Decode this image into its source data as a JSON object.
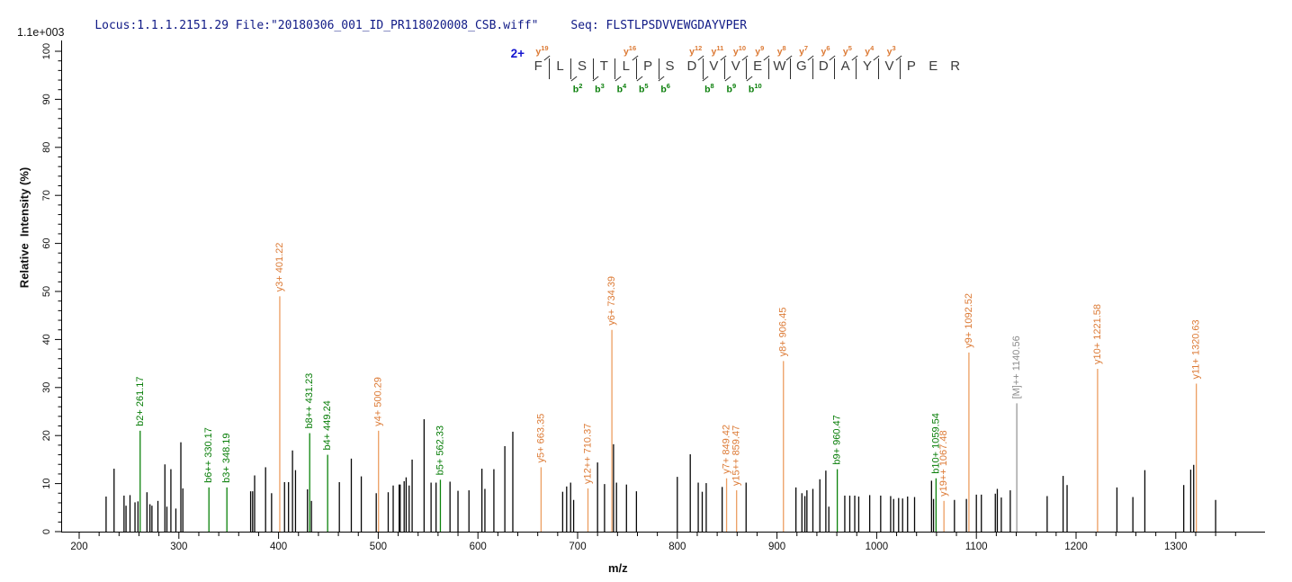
{
  "header": {
    "locus_file": "Locus:1.1.1.2151.29 File:\"20180306_001_ID_PR118020008_CSB.wiff\"",
    "seq": "Seq: FLSTLPSDVVEWGDAYVPER"
  },
  "y_axis": {
    "scale_note": "1.1e+003",
    "label": "Relative  Intensity (%)",
    "major_ticks": [
      0,
      10,
      20,
      30,
      40,
      50,
      60,
      70,
      80,
      90,
      100
    ],
    "minor_step": 2
  },
  "x_axis": {
    "label": "m/z",
    "major_ticks": [
      200,
      300,
      400,
      500,
      600,
      700,
      800,
      900,
      1000,
      1100,
      1200,
      1300
    ],
    "minor_step": 20
  },
  "sequence_panel": {
    "charge": "2+",
    "sequence": "FLSTLPSDVVEWGDAYVPER",
    "residues": [
      {
        "r": "F"
      },
      {
        "r": "L",
        "y": "19"
      },
      {
        "r": "S",
        "b": "2"
      },
      {
        "r": "T",
        "b": "3"
      },
      {
        "r": "L",
        "b": "4"
      },
      {
        "r": "P",
        "y": "16",
        "b": "5"
      },
      {
        "r": "S",
        "b": "6"
      },
      {
        "r": "D"
      },
      {
        "r": "V",
        "y": "12",
        "b": "8"
      },
      {
        "r": "V",
        "y": "11",
        "b": "9"
      },
      {
        "r": "E",
        "y": "10",
        "b": "10"
      },
      {
        "r": "W",
        "y": "9"
      },
      {
        "r": "G",
        "y": "8"
      },
      {
        "r": "D",
        "y": "7"
      },
      {
        "r": "A",
        "y": "6"
      },
      {
        "r": "Y",
        "y": "5"
      },
      {
        "r": "V",
        "y": "4"
      },
      {
        "r": "P",
        "y": "3"
      },
      {
        "r": "E"
      },
      {
        "r": "R"
      }
    ]
  },
  "colors": {
    "header_text": "#101A86",
    "charge_blue": "#1414D0",
    "b_line": "#0B830B",
    "b_text": "#077D07",
    "y_line": "#EC9E61",
    "y_text": "#DC7A35",
    "M_line": "#989898",
    "M_text": "#8C8C8C",
    "peak_black": "#060606",
    "axis": "#000000"
  },
  "chart_data": {
    "type": "bar",
    "subtype": "ms2-fragmentation-spectrum",
    "title": "",
    "xlabel": "m/z",
    "ylabel": "Relative Intensity (%)",
    "xlim": [
      182,
      1390
    ],
    "ylim": [
      0,
      100
    ],
    "grid": false,
    "legend": "none",
    "annotated_peaks": [
      {
        "label": "b2+ 261.17",
        "ion": "b2+",
        "mz": 261.17,
        "intensity": 21.0,
        "series": "b"
      },
      {
        "label": "b6++ 330.17",
        "ion": "b6++",
        "mz": 330.17,
        "intensity": 9.2,
        "series": "b"
      },
      {
        "label": "b3+ 348.19",
        "ion": "b3+",
        "mz": 348.19,
        "intensity": 9.2,
        "series": "b"
      },
      {
        "label": "y3+ 401.22",
        "ion": "y3+",
        "mz": 401.22,
        "intensity": 49.0,
        "series": "y"
      },
      {
        "label": "b8++ 431.23",
        "ion": "b8++",
        "mz": 431.23,
        "intensity": 20.5,
        "series": "b"
      },
      {
        "label": "b4+ 449.24",
        "ion": "b4+",
        "mz": 449.24,
        "intensity": 16.0,
        "series": "b"
      },
      {
        "label": "y4+ 500.29",
        "ion": "y4+",
        "mz": 500.29,
        "intensity": 21.0,
        "series": "y"
      },
      {
        "label": "b5+ 562.33",
        "ion": "b5+",
        "mz": 562.33,
        "intensity": 10.8,
        "series": "b"
      },
      {
        "label": "y5+ 663.35",
        "ion": "y5+",
        "mz": 663.35,
        "intensity": 13.4,
        "series": "y"
      },
      {
        "label": "y12++ 710.37",
        "ion": "y12++",
        "mz": 710.37,
        "intensity": 9.0,
        "series": "y"
      },
      {
        "label": "y6+ 734.39",
        "ion": "y6+",
        "mz": 734.39,
        "intensity": 42.0,
        "series": "y"
      },
      {
        "label": "y7+ 849.42",
        "ion": "y7+",
        "mz": 849.42,
        "intensity": 11.1,
        "series": "y"
      },
      {
        "label": "y15++ 859.47",
        "ion": "y15++",
        "mz": 859.47,
        "intensity": 8.6,
        "series": "y"
      },
      {
        "label": "y8+ 906.45",
        "ion": "y8+",
        "mz": 906.45,
        "intensity": 35.5,
        "series": "y"
      },
      {
        "label": "b9+ 960.47",
        "ion": "b9+",
        "mz": 960.47,
        "intensity": 13.0,
        "series": "b"
      },
      {
        "label": "b10+ 1059.54",
        "ion": "b10+",
        "mz": 1059.54,
        "intensity": 11.1,
        "series": "b"
      },
      {
        "label": "y19++ 1067.48",
        "ion": "y19++",
        "mz": 1067.48,
        "intensity": 6.4,
        "series": "y"
      },
      {
        "label": "y9+ 1092.52",
        "ion": "y9+",
        "mz": 1092.52,
        "intensity": 37.3,
        "series": "y"
      },
      {
        "label": "[M]++ 1140.56",
        "ion": "[M]++",
        "mz": 1140.56,
        "intensity": 26.7,
        "series": "M"
      },
      {
        "label": "y10+ 1221.58",
        "ion": "y10+",
        "mz": 1221.58,
        "intensity": 33.9,
        "series": "y"
      },
      {
        "label": "y11+ 1320.63",
        "ion": "y11+",
        "mz": 1320.63,
        "intensity": 30.8,
        "series": "y"
      }
    ],
    "peaks": [
      [
        227,
        7.3
      ],
      [
        235,
        13.1
      ],
      [
        245,
        7.5
      ],
      [
        247,
        5.4
      ],
      [
        251,
        7.6
      ],
      [
        256,
        6.1
      ],
      [
        259,
        6.3
      ],
      [
        268,
        8.2
      ],
      [
        271,
        5.7
      ],
      [
        273,
        5.4
      ],
      [
        279,
        6.4
      ],
      [
        286,
        14.0
      ],
      [
        288,
        5.2
      ],
      [
        292,
        13.0
      ],
      [
        297,
        4.8
      ],
      [
        302,
        18.6
      ],
      [
        304,
        9.0
      ],
      [
        372,
        8.4
      ],
      [
        374,
        8.4
      ],
      [
        376,
        11.7
      ],
      [
        387,
        13.4
      ],
      [
        393,
        8.0
      ],
      [
        406,
        10.3
      ],
      [
        410,
        10.3
      ],
      [
        414,
        16.9
      ],
      [
        417,
        12.8
      ],
      [
        429,
        8.8
      ],
      [
        433,
        6.4
      ],
      [
        461,
        10.3
      ],
      [
        473,
        15.2
      ],
      [
        483,
        11.5
      ],
      [
        498,
        8.0
      ],
      [
        510,
        8.2
      ],
      [
        515,
        9.6
      ],
      [
        521,
        9.8
      ],
      [
        522,
        9.8
      ],
      [
        526,
        10.5
      ],
      [
        528,
        11.3
      ],
      [
        531,
        9.6
      ],
      [
        534,
        15.0
      ],
      [
        546,
        23.4
      ],
      [
        553,
        10.2
      ],
      [
        558,
        10.2
      ],
      [
        572,
        10.4
      ],
      [
        580,
        8.5
      ],
      [
        591,
        8.6
      ],
      [
        604,
        13.1
      ],
      [
        607,
        8.9
      ],
      [
        616,
        13.0
      ],
      [
        627,
        17.8
      ],
      [
        635,
        20.8
      ],
      [
        685,
        8.3
      ],
      [
        689,
        9.4
      ],
      [
        693,
        10.2
      ],
      [
        696,
        6.6
      ],
      [
        720,
        14.4
      ],
      [
        727,
        9.9
      ],
      [
        736,
        18.2
      ],
      [
        739,
        10.2
      ],
      [
        749,
        9.8
      ],
      [
        759,
        8.4
      ],
      [
        800,
        11.4
      ],
      [
        813,
        16.1
      ],
      [
        821,
        10.2
      ],
      [
        825,
        8.3
      ],
      [
        829,
        10.1
      ],
      [
        845,
        9.3
      ],
      [
        869,
        10.2
      ],
      [
        919,
        9.2
      ],
      [
        925,
        8.0
      ],
      [
        928,
        7.4
      ],
      [
        930,
        8.6
      ],
      [
        936,
        8.9
      ],
      [
        943,
        10.9
      ],
      [
        949,
        12.7
      ],
      [
        952,
        5.2
      ],
      [
        968,
        7.5
      ],
      [
        973,
        7.5
      ],
      [
        978,
        7.5
      ],
      [
        982,
        7.3
      ],
      [
        993,
        7.6
      ],
      [
        1004,
        7.5
      ],
      [
        1014,
        7.4
      ],
      [
        1017,
        6.8
      ],
      [
        1022,
        7.0
      ],
      [
        1026,
        6.9
      ],
      [
        1031,
        7.3
      ],
      [
        1038,
        7.2
      ],
      [
        1055,
        10.6
      ],
      [
        1057,
        6.8
      ],
      [
        1078,
        6.6
      ],
      [
        1090,
        6.8
      ],
      [
        1100,
        7.7
      ],
      [
        1105,
        7.7
      ],
      [
        1119,
        7.9
      ],
      [
        1121,
        8.9
      ],
      [
        1125,
        7.1
      ],
      [
        1134,
        8.6
      ],
      [
        1171,
        7.4
      ],
      [
        1187,
        11.6
      ],
      [
        1191,
        9.7
      ],
      [
        1241,
        9.2
      ],
      [
        1257,
        7.2
      ],
      [
        1269,
        12.8
      ],
      [
        1308,
        9.7
      ],
      [
        1315,
        12.9
      ],
      [
        1318,
        13.9
      ],
      [
        1340,
        6.6
      ]
    ]
  }
}
